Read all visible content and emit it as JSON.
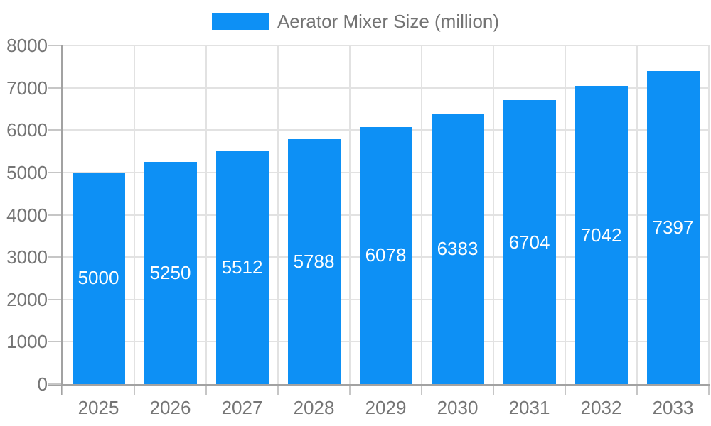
{
  "legend": {
    "items": [
      {
        "label": "Aerator Mixer Size (million)",
        "color": "#0d90f5"
      }
    ]
  },
  "chart_data": {
    "type": "bar",
    "title": "Aerator Mixer Size (million)",
    "categories": [
      "2025",
      "2026",
      "2027",
      "2028",
      "2029",
      "2030",
      "2031",
      "2032",
      "2033"
    ],
    "series": [
      {
        "name": "Aerator Mixer Size (million)",
        "color": "#0d90f5",
        "values": [
          5000,
          5250,
          5512,
          5788,
          6078,
          6383,
          6704,
          7042,
          7397
        ]
      }
    ],
    "value_labels_position": "inside-center",
    "value_label_color": "#ffffff",
    "xlabel": "",
    "ylabel": "",
    "ylim": [
      0,
      8000
    ],
    "ytick_interval": 1000,
    "yticks": [
      0,
      1000,
      2000,
      3000,
      4000,
      5000,
      6000,
      7000,
      8000
    ],
    "grid": true,
    "legend_position": "top",
    "colors": {
      "background": "#ffffff",
      "axis_text": "#757575",
      "grid_line": "#e2e2e2",
      "axis_line": "#a2a2a2",
      "tick_mark": "#c6c6c6"
    }
  }
}
